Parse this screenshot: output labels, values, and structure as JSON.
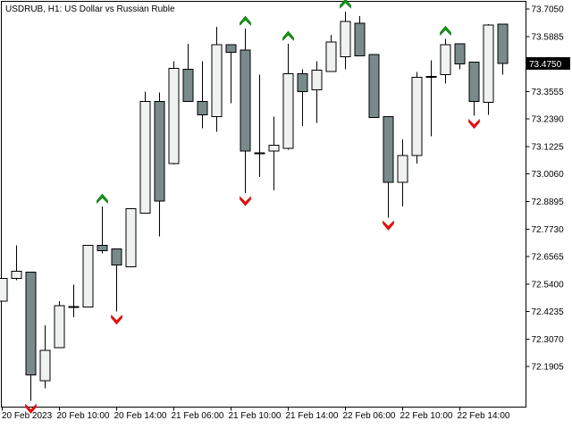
{
  "chart_data": {
    "type": "candlestick",
    "symbol": "USDRUB",
    "timeframe": "H1",
    "description": "US Dollar vs Russian Ruble",
    "title": "USDRUB, H1:  US Dollar vs Russian Ruble",
    "grid": false,
    "legend_position": "none",
    "price_axis": {
      "side": "right",
      "ylim": [
        72.019,
        73.739
      ],
      "ticks": [
        "73.7050",
        "73.5885",
        "73.3555",
        "73.2390",
        "73.1225",
        "73.0060",
        "72.8895",
        "72.7730",
        "72.6565",
        "72.5400",
        "72.4235",
        "72.3070",
        "72.1905"
      ],
      "current": "73.4750",
      "current_value": 73.475
    },
    "time_axis": {
      "ticks": [
        {
          "index": 0,
          "label": "20 Feb 2023"
        },
        {
          "index": 4,
          "label": "20 Feb 10:00"
        },
        {
          "index": 8,
          "label": "20 Feb 14:00"
        },
        {
          "index": 12,
          "label": "21 Feb 06:00"
        },
        {
          "index": 16,
          "label": "21 Feb 10:00"
        },
        {
          "index": 20,
          "label": "21 Feb 14:00"
        },
        {
          "index": 24,
          "label": "22 Feb 06:00"
        },
        {
          "index": 28,
          "label": "22 Feb 10:00"
        },
        {
          "index": 32,
          "label": "22 Feb 14:00"
        }
      ]
    },
    "candles": [
      {
        "o": 72.468,
        "h": 72.564,
        "l": 72.468,
        "c": 72.564
      },
      {
        "o": 72.564,
        "h": 72.704,
        "l": 72.556,
        "c": 72.594
      },
      {
        "o": 72.59,
        "h": 72.59,
        "l": 72.046,
        "c": 72.156
      },
      {
        "o": 72.13,
        "h": 72.366,
        "l": 72.099,
        "c": 72.259
      },
      {
        "o": 72.271,
        "h": 72.468,
        "l": 72.271,
        "c": 72.449
      },
      {
        "o": 72.444,
        "h": 72.537,
        "l": 72.4,
        "c": 72.444
      },
      {
        "o": 72.442,
        "h": 72.704,
        "l": 72.442,
        "c": 72.704
      },
      {
        "o": 72.704,
        "h": 72.868,
        "l": 72.67,
        "c": 72.681
      },
      {
        "o": 72.689,
        "h": 72.689,
        "l": 72.423,
        "c": 72.621
      },
      {
        "o": 72.613,
        "h": 72.86,
        "l": 72.613,
        "c": 72.86
      },
      {
        "o": 72.841,
        "h": 73.355,
        "l": 72.841,
        "c": 73.313
      },
      {
        "o": 73.313,
        "h": 73.351,
        "l": 72.742,
        "c": 72.891
      },
      {
        "o": 73.051,
        "h": 73.484,
        "l": 73.047,
        "c": 73.454
      },
      {
        "o": 73.45,
        "h": 73.557,
        "l": 73.313,
        "c": 73.313
      },
      {
        "o": 73.313,
        "h": 73.484,
        "l": 73.199,
        "c": 73.256
      },
      {
        "o": 73.248,
        "h": 73.629,
        "l": 73.184,
        "c": 73.553
      },
      {
        "o": 73.553,
        "h": 73.553,
        "l": 73.305,
        "c": 73.522
      },
      {
        "o": 73.53,
        "h": 73.621,
        "l": 72.925,
        "c": 73.104
      },
      {
        "o": 73.096,
        "h": 73.427,
        "l": 72.993,
        "c": 73.096
      },
      {
        "o": 73.104,
        "h": 73.248,
        "l": 72.936,
        "c": 73.127
      },
      {
        "o": 73.115,
        "h": 73.557,
        "l": 73.108,
        "c": 73.431
      },
      {
        "o": 73.431,
        "h": 73.45,
        "l": 73.21,
        "c": 73.355
      },
      {
        "o": 73.363,
        "h": 73.484,
        "l": 73.222,
        "c": 73.446
      },
      {
        "o": 73.439,
        "h": 73.595,
        "l": 73.439,
        "c": 73.564
      },
      {
        "o": 73.503,
        "h": 73.694,
        "l": 73.45,
        "c": 73.652
      },
      {
        "o": 73.644,
        "h": 73.675,
        "l": 73.507,
        "c": 73.507
      },
      {
        "o": 73.511,
        "h": 73.511,
        "l": 73.245,
        "c": 73.245
      },
      {
        "o": 73.248,
        "h": 73.248,
        "l": 72.822,
        "c": 72.971
      },
      {
        "o": 72.971,
        "h": 73.153,
        "l": 72.868,
        "c": 73.085
      },
      {
        "o": 73.085,
        "h": 73.439,
        "l": 73.051,
        "c": 73.416
      },
      {
        "o": 73.42,
        "h": 73.488,
        "l": 73.165,
        "c": 73.42
      },
      {
        "o": 73.427,
        "h": 73.579,
        "l": 73.389,
        "c": 73.553
      },
      {
        "o": 73.557,
        "h": 73.557,
        "l": 73.45,
        "c": 73.473
      },
      {
        "o": 73.48,
        "h": 73.48,
        "l": 73.252,
        "c": 73.313
      },
      {
        "o": 73.309,
        "h": 73.64,
        "l": 73.256,
        "c": 73.636
      },
      {
        "o": 73.64,
        "h": 73.64,
        "l": 73.427,
        "c": 73.475
      }
    ],
    "signals": [
      {
        "candle": 2,
        "type": "sell"
      },
      {
        "candle": 7,
        "type": "buy"
      },
      {
        "candle": 8,
        "type": "sell"
      },
      {
        "candle": 17,
        "type": "buy"
      },
      {
        "candle": 17,
        "type": "sell"
      },
      {
        "candle": 20,
        "type": "buy"
      },
      {
        "candle": 24,
        "type": "buy"
      },
      {
        "candle": 27,
        "type": "sell"
      },
      {
        "candle": 31,
        "type": "buy"
      },
      {
        "candle": 33,
        "type": "sell"
      }
    ]
  },
  "colors": {
    "background": "#ffffff",
    "frame": "#000000",
    "bull_fill": "#f0f2f2",
    "bear_fill": "#798a8a",
    "candle_border": "#000000",
    "doji_fill": "#000000",
    "up_arrow": "#0b9e0b",
    "up_arrow_edge": "#0a5a14",
    "down_arrow": "#f20d0d",
    "down_arrow_edge": "#c00000",
    "current_price_bg": "#000000",
    "current_price_text": "#ffffff",
    "axis_text": "#000000"
  }
}
